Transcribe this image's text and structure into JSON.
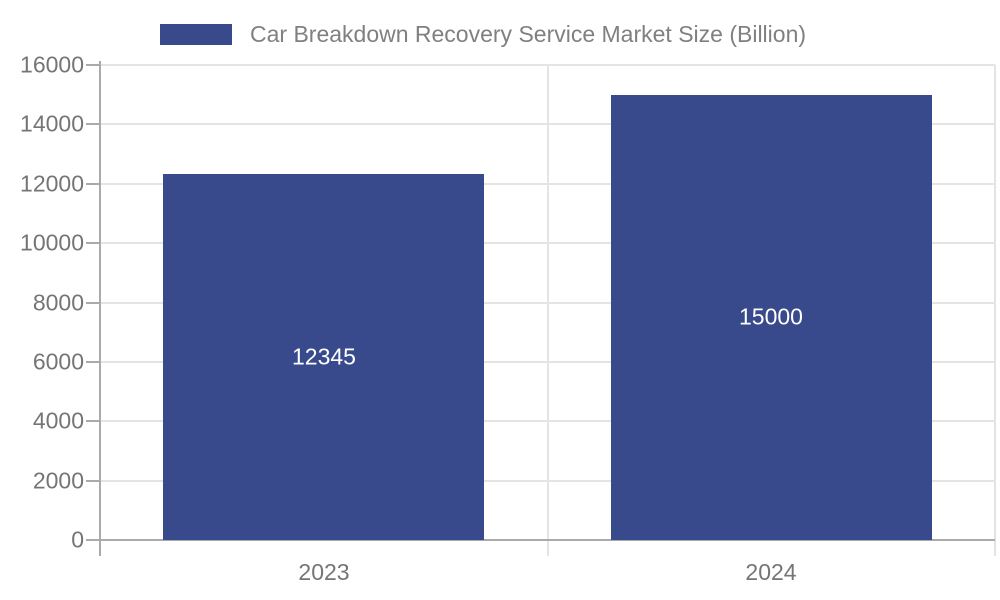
{
  "legend": {
    "label": "Car Breakdown Recovery Service Market Size (Billion)"
  },
  "chart_data": {
    "type": "bar",
    "title": "Car Breakdown Recovery Service Market Size (Billion)",
    "series_name": "Car Breakdown Recovery Service Market Size (Billion)",
    "categories": [
      "2023",
      "2024"
    ],
    "values": [
      12345,
      15000
    ],
    "data_labels": [
      "12345",
      "15000"
    ],
    "xlabel": "",
    "ylabel": "",
    "ylim": [
      0,
      16000
    ],
    "ytick_interval": 2000,
    "ytick_labels": [
      "0",
      "2000",
      "4000",
      "6000",
      "8000",
      "10000",
      "12000",
      "14000",
      "16000"
    ],
    "grid": true,
    "legend_position": "top-left",
    "colors": {
      "bar": "#384A8B",
      "value_label": "#FFFFFF",
      "axis_line": "#AAAAAA",
      "gridline": "#E4E4E4",
      "tick_label": "#757575",
      "title_text": "#808080",
      "background": "#FFFFFF"
    }
  }
}
